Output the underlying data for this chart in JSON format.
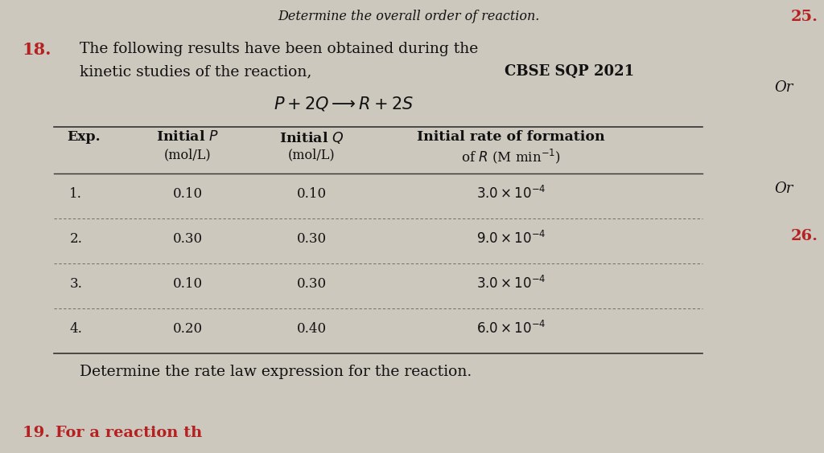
{
  "background_color": "#ccc8be",
  "top_text": "Determine the overall order of reaction.",
  "question_number": "18.",
  "q18_line1": "The following results have been obtained during the",
  "q18_line2": "kinetic studies of the reaction,",
  "cbse_label": "CBSE SQP 2021",
  "or_1": "Or",
  "or_2": "Or",
  "reaction_equation": "$P + 2Q \\longrightarrow R + 2S$",
  "header_exp": "Exp.",
  "header_p": "Initial $P$",
  "header_p2": "(mol/L)",
  "header_q": "Initial $Q$",
  "header_q2": "(mol/L)",
  "header_rate1": "Initial rate of formation",
  "header_rate2": "of $R$ (M min$^{-1}$)",
  "table_data": [
    [
      "1.",
      "0.10",
      "0.10",
      "$3.0 \\times 10^{-4}$"
    ],
    [
      "2.",
      "0.30",
      "0.30",
      "$9.0 \\times 10^{-4}$"
    ],
    [
      "3.",
      "0.10",
      "0.30",
      "$3.0 \\times 10^{-4}$"
    ],
    [
      "4.",
      "0.20",
      "0.40",
      "$6.0 \\times 10^{-4}$"
    ]
  ],
  "bottom_text": "Determine the rate law expression for the reaction.",
  "q19_text": "19. For a reaction th",
  "num_25": "25.",
  "num_26": "26.",
  "text_color": "#111111",
  "red_color": "#b52020",
  "line_color": "#333333"
}
